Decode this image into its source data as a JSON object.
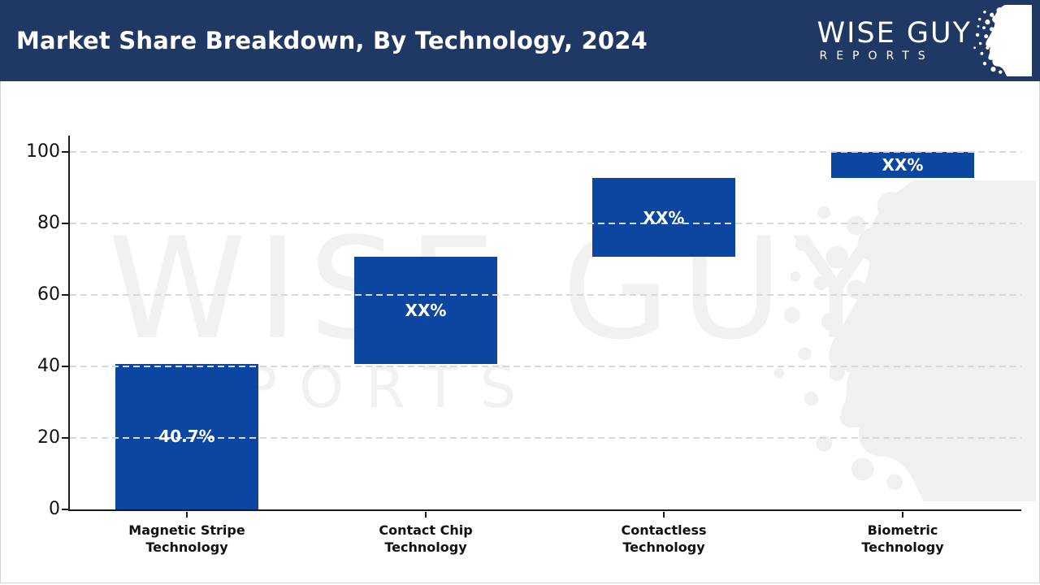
{
  "header": {
    "title": "Market Share Breakdown, By Technology, 2024",
    "bg_color": "#1f3864",
    "logo": {
      "name": "WISE GUY",
      "sub": "REPORTS"
    }
  },
  "watermark": {
    "line1": "WISE GUY",
    "line2": "REPORTS"
  },
  "chart_data": {
    "type": "bar",
    "subtype": "waterfall",
    "title": "Market Share Breakdown, By Technology, 2024",
    "categories": [
      "Magnetic Stripe Technology",
      "Contact Chip Technology",
      "Contactless Technology",
      "Biometric Technology"
    ],
    "category_lines": [
      [
        "Magnetic Stripe",
        "Technology"
      ],
      [
        "Contact Chip",
        "Technology"
      ],
      [
        "Contactless",
        "Technology"
      ],
      [
        "Biometric",
        "Technology"
      ]
    ],
    "segments": [
      {
        "start": 0,
        "end": 40.7,
        "label": "40.7%"
      },
      {
        "start": 40.7,
        "end": 70.6,
        "label": "XX%"
      },
      {
        "start": 70.6,
        "end": 92.8,
        "label": "XX%"
      },
      {
        "start": 92.8,
        "end": 100,
        "label": "XX%"
      }
    ],
    "yticks": [
      0,
      20,
      40,
      60,
      80,
      100
    ],
    "ylim": [
      0,
      104.5
    ],
    "xlabel": "",
    "ylabel": "",
    "grid": {
      "axis": "y",
      "style": "dashed",
      "color": "#d8d8d8",
      "drawn_over_bars": true
    },
    "bar_color": "#0d46a0",
    "value_label_color": "#ffffff",
    "legend": "none"
  }
}
